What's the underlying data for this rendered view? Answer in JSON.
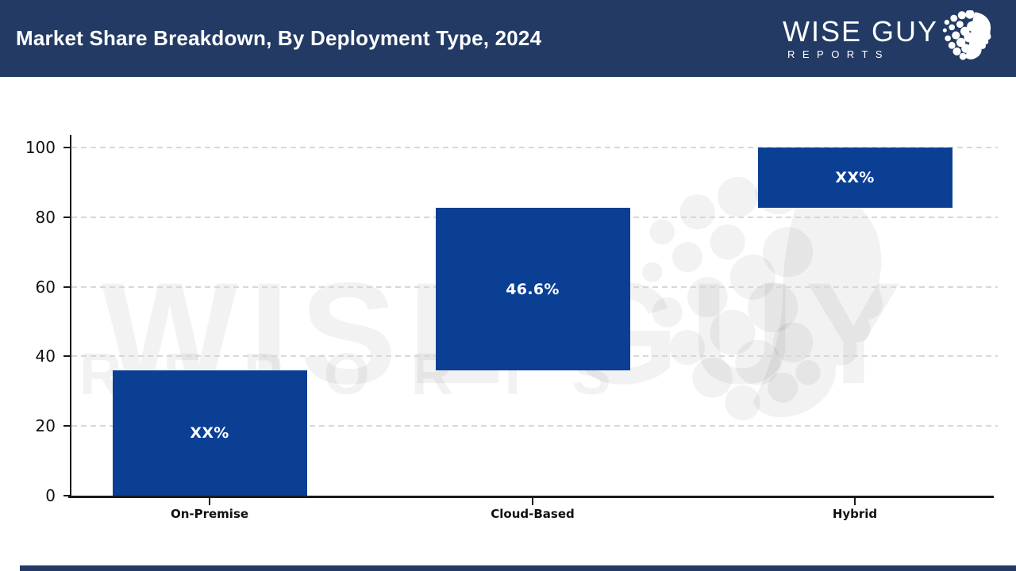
{
  "header": {
    "title": "Market Share Breakdown, By Deployment Type, 2024",
    "logo": {
      "name": "WISE GUY REPORTS",
      "line1": "WISE GUY",
      "line2": "REPORTS"
    }
  },
  "watermark": {
    "line1": "WISE GUY",
    "line2": "REPORTS"
  },
  "chart_data": {
    "type": "bar",
    "variant": "floating-waterfall",
    "title": "Market Share Breakdown, By Deployment Type, 2024",
    "categories": [
      "On-Premise",
      "Cloud-Based",
      "Hybrid"
    ],
    "bars": [
      {
        "category": "On-Premise",
        "start": 0,
        "end": 36,
        "span": 36,
        "label": "XX%"
      },
      {
        "category": "Cloud-Based",
        "start": 36,
        "end": 82.6,
        "span": 46.6,
        "label": "46.6%"
      },
      {
        "category": "Hybrid",
        "start": 82.6,
        "end": 100,
        "span": 17.4,
        "label": "XX%"
      }
    ],
    "xlabel": "",
    "ylabel": "",
    "ylim": [
      0,
      105
    ],
    "yticks": [
      0,
      20,
      40,
      60,
      80,
      100
    ],
    "grid": "horizontal-dashed",
    "legend": "none",
    "bar_color": "#0a3f94",
    "bar_label_color": "#ffffff",
    "grid_color": "#d8d8d8",
    "axis_color": "#1a1a1a",
    "header_bg_color": "#223a64",
    "watermark_color": "#f2f2f2"
  }
}
